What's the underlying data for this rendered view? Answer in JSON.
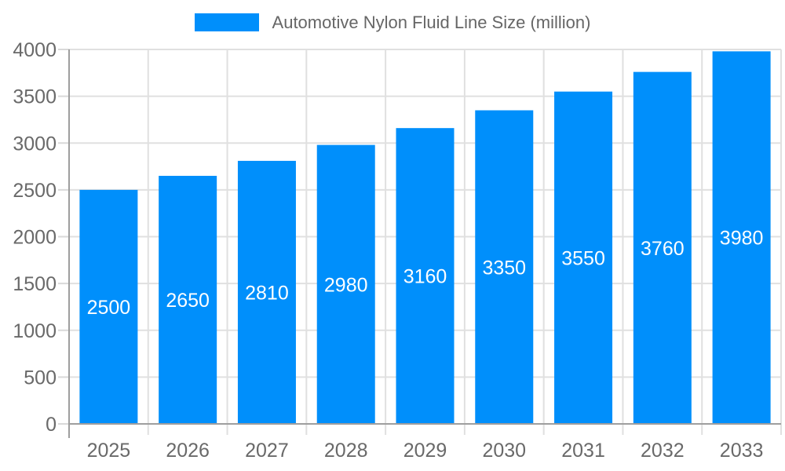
{
  "legend": {
    "label": "Automotive Nylon Fluid Line Size (million)"
  },
  "colors": {
    "bar": "#008FFB",
    "legend_text": "#666666",
    "axis_label": "#696969",
    "value_label": "#ffffff",
    "gridline": "#e0e0e0",
    "tick": "#d9d9d9",
    "axis_line": "#9e9e9e",
    "background": "#ffffff"
  },
  "chart_data": {
    "type": "bar",
    "title": "Automotive Nylon Fluid Line Size (million)",
    "series_name": "Automotive Nylon Fluid Line Size (million)",
    "categories": [
      "2025",
      "2026",
      "2027",
      "2028",
      "2029",
      "2030",
      "2031",
      "2032",
      "2033"
    ],
    "values": [
      2500,
      2650,
      2810,
      2980,
      3160,
      3350,
      3550,
      3760,
      3980
    ],
    "xlabel": "",
    "ylabel": "",
    "ylim": [
      0,
      4000
    ],
    "ytick_interval": 500,
    "yticks": [
      0,
      500,
      1000,
      1500,
      2000,
      2500,
      3000,
      3500,
      4000
    ],
    "grid": true,
    "legend_position": "top",
    "value_labels": "inside-center"
  }
}
